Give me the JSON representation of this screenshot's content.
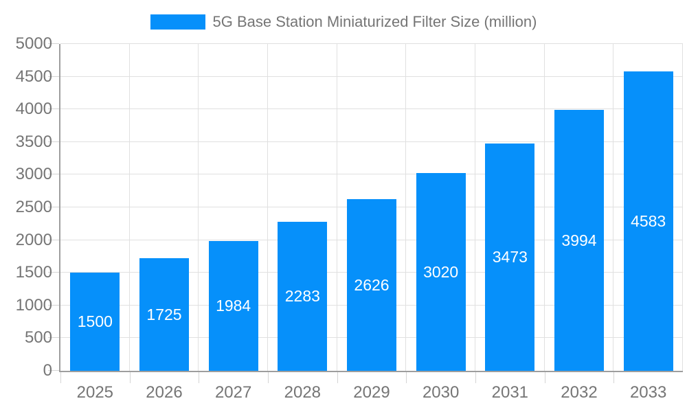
{
  "legend": {
    "label": "5G Base Station Miniaturized Filter Size (million)"
  },
  "chart_data": {
    "type": "bar",
    "categories": [
      "2025",
      "2026",
      "2027",
      "2028",
      "2029",
      "2030",
      "2031",
      "2032",
      "2033"
    ],
    "values": [
      1500,
      1725,
      1984,
      2283,
      2626,
      3020,
      3473,
      3994,
      4583
    ],
    "title": "",
    "xlabel": "",
    "ylabel": "",
    "ylim": [
      0,
      5000
    ],
    "ytick_step": 500,
    "grid": true,
    "legend_entries": [
      "5G Base Station Miniaturized Filter Size (million)"
    ],
    "legend_position": "top",
    "value_labels": "inside-center-white"
  },
  "colors": {
    "bar": "#0690fa",
    "grid": "#e0e0e0",
    "axis": "#9e9e9e",
    "tick": "#d4d4d4",
    "text": "#757575",
    "value_label": "#ffffff"
  }
}
